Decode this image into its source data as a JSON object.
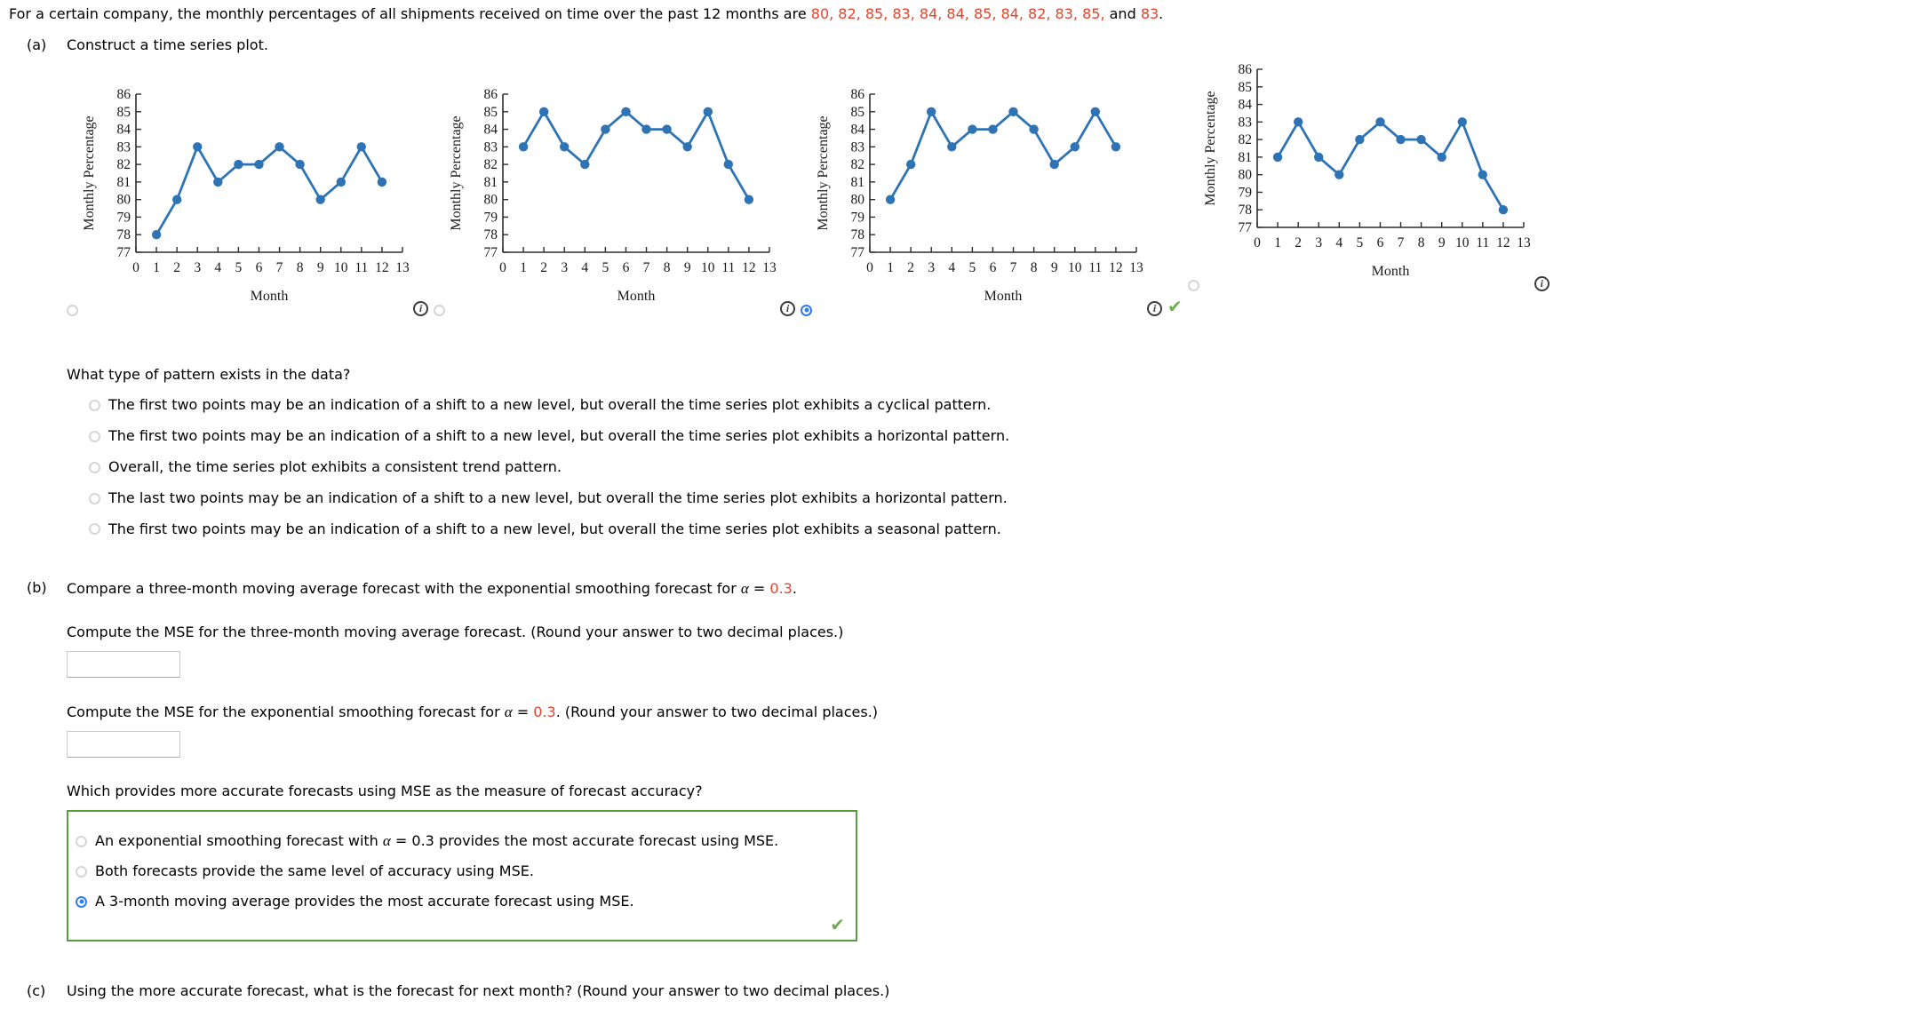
{
  "page": {
    "background": "#ffffff",
    "accent_red": "#e5432c",
    "chart_blue": "#2e74b5",
    "correct_green": "#5b9c41",
    "radio_selected_blue": "#2e7cf0"
  },
  "icons": {
    "info": "i",
    "check": "✔"
  },
  "intro": {
    "prefix": "For a certain company, the monthly percentages of all shipments received on time over the past 12 months are ",
    "values_red": "80, 82, 85, 83, 84, 84, 85, 84, 82, 83, 85,",
    "conjunction": " and ",
    "last_value_red": "83",
    "suffix": "."
  },
  "part_a": {
    "label": "(a)",
    "title": "Construct a time series plot.",
    "chart_options": [
      {
        "selected": false,
        "correct": false
      },
      {
        "selected": false,
        "correct": false
      },
      {
        "selected": true,
        "correct": true
      },
      {
        "selected": false,
        "correct": false
      }
    ],
    "pattern_question": {
      "prompt": "What type of pattern exists in the data?",
      "options": [
        {
          "label": "The first two points may be an indication of a shift to a new level, but overall the time series plot exhibits a cyclical pattern.",
          "selected": false
        },
        {
          "label": "The first two points may be an indication of a shift to a new level, but overall the time series plot exhibits a horizontal pattern.",
          "selected": false
        },
        {
          "label": "Overall, the time series plot exhibits a consistent trend pattern.",
          "selected": false
        },
        {
          "label": "The last two points may be an indication of a shift to a new level, but overall the time series plot exhibits a horizontal pattern.",
          "selected": false
        },
        {
          "label": "The first two points may be an indication of a shift to a new level, but overall the time series plot exhibits a seasonal pattern.",
          "selected": false
        }
      ]
    }
  },
  "chart_data": [
    {
      "type": "line",
      "marker": "circle",
      "color": "#2e74b5",
      "x": [
        1,
        2,
        3,
        4,
        5,
        6,
        7,
        8,
        9,
        10,
        11,
        12
      ],
      "values": [
        78,
        80,
        83,
        81,
        82,
        82,
        83,
        82,
        80,
        81,
        83,
        81
      ],
      "title": "",
      "xlabel": "Month",
      "ylabel": "Monthly Percentage",
      "xlim": [
        0,
        13
      ],
      "ylim": [
        77,
        86
      ],
      "x_ticks": [
        0,
        1,
        2,
        3,
        4,
        5,
        6,
        7,
        8,
        9,
        10,
        11,
        12,
        13
      ],
      "y_ticks": [
        77,
        78,
        79,
        80,
        81,
        82,
        83,
        84,
        85,
        86
      ],
      "grid": false,
      "legend": "none"
    },
    {
      "type": "line",
      "marker": "circle",
      "color": "#2e74b5",
      "x": [
        1,
        2,
        3,
        4,
        5,
        6,
        7,
        8,
        9,
        10,
        11,
        12
      ],
      "values": [
        83,
        85,
        83,
        82,
        84,
        85,
        84,
        84,
        83,
        85,
        82,
        80
      ],
      "title": "",
      "xlabel": "Month",
      "ylabel": "Monthly Percentage",
      "xlim": [
        0,
        13
      ],
      "ylim": [
        77,
        86
      ],
      "x_ticks": [
        0,
        1,
        2,
        3,
        4,
        5,
        6,
        7,
        8,
        9,
        10,
        11,
        12,
        13
      ],
      "y_ticks": [
        77,
        78,
        79,
        80,
        81,
        82,
        83,
        84,
        85,
        86
      ],
      "grid": false,
      "legend": "none"
    },
    {
      "type": "line",
      "marker": "circle",
      "color": "#2e74b5",
      "x": [
        1,
        2,
        3,
        4,
        5,
        6,
        7,
        8,
        9,
        10,
        11,
        12
      ],
      "values": [
        80,
        82,
        85,
        83,
        84,
        84,
        85,
        84,
        82,
        83,
        85,
        83
      ],
      "title": "",
      "xlabel": "Month",
      "ylabel": "Monthly Percentage",
      "xlim": [
        0,
        13
      ],
      "ylim": [
        77,
        86
      ],
      "x_ticks": [
        0,
        1,
        2,
        3,
        4,
        5,
        6,
        7,
        8,
        9,
        10,
        11,
        12,
        13
      ],
      "y_ticks": [
        77,
        78,
        79,
        80,
        81,
        82,
        83,
        84,
        85,
        86
      ],
      "grid": false,
      "legend": "none"
    },
    {
      "type": "line",
      "marker": "circle",
      "color": "#2e74b5",
      "x": [
        1,
        2,
        3,
        4,
        5,
        6,
        7,
        8,
        9,
        10,
        11,
        12
      ],
      "values": [
        81,
        83,
        81,
        80,
        82,
        83,
        82,
        82,
        81,
        83,
        80,
        78
      ],
      "title": "",
      "xlabel": "Month",
      "ylabel": "Monthly Percentage",
      "xlim": [
        0,
        13
      ],
      "ylim": [
        77,
        86
      ],
      "x_ticks": [
        0,
        1,
        2,
        3,
        4,
        5,
        6,
        7,
        8,
        9,
        10,
        11,
        12,
        13
      ],
      "y_ticks": [
        77,
        78,
        79,
        80,
        81,
        82,
        83,
        84,
        85,
        86
      ],
      "grid": false,
      "legend": "none"
    }
  ],
  "part_b": {
    "label": "(b)",
    "title_prefix": "Compare a three-month moving average forecast with the exponential smoothing forecast for ",
    "alpha": "α",
    "equals": " = ",
    "alpha_value": "0.3",
    "title_suffix": ".",
    "q1": {
      "text": "Compute the MSE for the three-month moving average forecast. (Round your answer to two decimal places.)",
      "input_value": ""
    },
    "q2": {
      "prefix": "Compute the MSE for the exponential smoothing forecast for ",
      "alpha": "α",
      "equals": " = ",
      "alpha_value": "0.3",
      "suffix": ". (Round your answer to two decimal places.)",
      "input_value": ""
    },
    "q3": {
      "prompt": "Which provides more accurate forecasts using MSE as the measure of forecast accuracy?",
      "options": [
        {
          "pre": "An exponential smoothing forecast with ",
          "alpha": "α",
          "post": " = 0.3 provides the most accurate forecast using MSE.",
          "selected": false
        },
        {
          "pre": "",
          "alpha": "",
          "post": "Both forecasts provide the same level of accuracy using MSE.",
          "selected": false
        },
        {
          "pre": "",
          "alpha": "",
          "post": "A 3-month moving average provides the most accurate forecast using MSE.",
          "selected": true
        }
      ]
    }
  },
  "part_c": {
    "label": "(c)",
    "title": "Using the more accurate forecast, what is the forecast for next month? (Round your answer to two decimal places.)",
    "input_value": ""
  }
}
